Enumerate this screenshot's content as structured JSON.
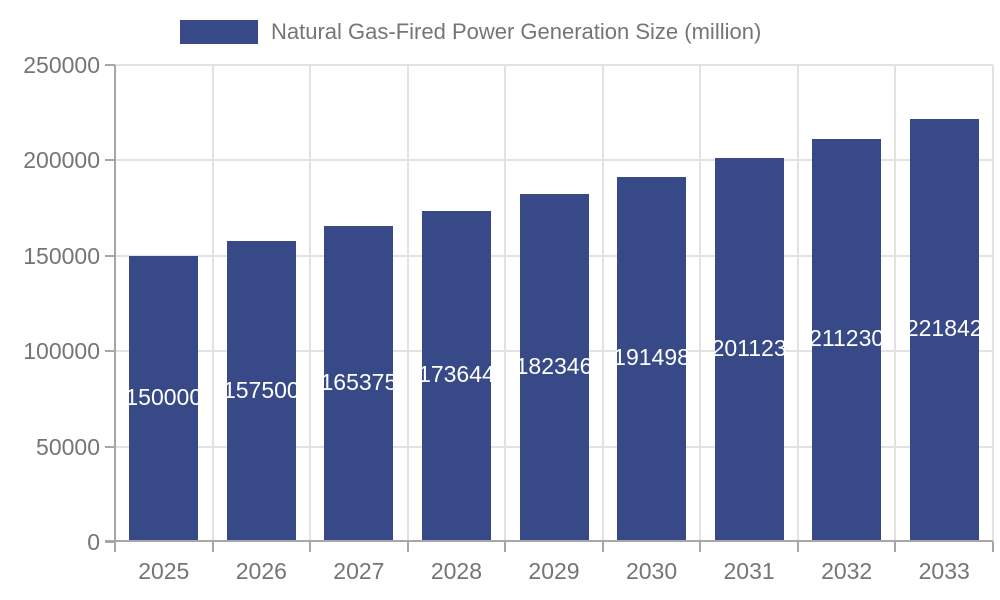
{
  "legend": {
    "label": "Natural Gas-Fired Power Generation Size (million)"
  },
  "colors": {
    "background": "#FFFFFF",
    "bar": "#374A87",
    "bar_label": "#FFFFFF",
    "axis_line": "#A6A6A6",
    "gridline": "#E2E2E2",
    "tick_label": "#757575"
  },
  "chart_data": {
    "type": "bar",
    "title": "Natural Gas-Fired Power Generation Size (million)",
    "categories": [
      "2025",
      "2026",
      "2027",
      "2028",
      "2029",
      "2030",
      "2031",
      "2032",
      "2033"
    ],
    "values": [
      150000,
      157500,
      165375,
      173644,
      182346,
      191498,
      201123,
      211230,
      221842
    ],
    "bar_value_labels": [
      "150000",
      "157500",
      "165375",
      "173644",
      "182346",
      "191498",
      "201123",
      "211230",
      "221842"
    ],
    "xlabel": "",
    "ylabel": "",
    "ylim": [
      0,
      250000
    ],
    "ytick_interval": 50000,
    "ytick_labels": [
      "0",
      "50000",
      "100000",
      "150000",
      "200000",
      "250000"
    ],
    "grid": true,
    "legend_position": "top",
    "value_label_position": "inside-center"
  }
}
